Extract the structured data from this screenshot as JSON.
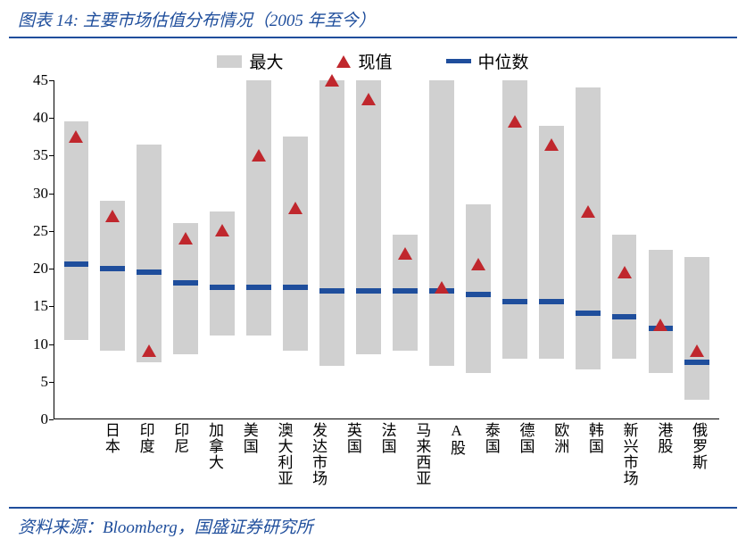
{
  "title": "图表 14:  主要市场估值分布情况（2005 年至今）",
  "source": "资料来源：Bloomberg，国盛证券研究所",
  "legend": {
    "max": "最大",
    "current": "现值",
    "median": "中位数"
  },
  "chart": {
    "type": "bar",
    "ylim": [
      0,
      45
    ],
    "ytick_step": 5,
    "yticks": [
      0,
      5,
      10,
      15,
      20,
      25,
      30,
      35,
      40,
      45
    ],
    "background_color": "#ffffff",
    "bar_color": "#d0d0d0",
    "marker_color": "#c0272d",
    "median_color": "#1f4e9c",
    "accent_color": "#1f4e9c",
    "axis_color": "#000000",
    "title_fontsize": 19,
    "label_fontsize": 17,
    "legend_fontsize": 19,
    "bar_width": 0.68,
    "marker_style": "triangle",
    "marker_size": 14,
    "median_line_height": 6,
    "categories": [
      "日本",
      "印度",
      "印尼",
      "加拿大",
      "美国",
      "澳大利亚",
      "发达市场",
      "英国",
      "法国",
      "马来西亚",
      "A股",
      "泰国",
      "德国",
      "欧洲",
      "韩国",
      "新兴市场",
      "港股",
      "俄罗斯"
    ],
    "range_low": [
      10.5,
      9,
      7.5,
      8.5,
      11,
      11,
      9,
      7,
      8.5,
      9,
      7,
      6,
      8,
      8,
      6.5,
      8,
      6,
      2.5
    ],
    "range_high": [
      39.5,
      29,
      36.5,
      26,
      27.5,
      45,
      37.5,
      45,
      45,
      24.5,
      45,
      28.5,
      45,
      39,
      44,
      24.5,
      22.5,
      21.5
    ],
    "current": [
      37.5,
      27,
      9,
      24,
      25,
      35,
      28,
      45,
      42.5,
      22,
      17.5,
      20.5,
      39.5,
      36.5,
      27.5,
      19.5,
      12.5,
      9
    ],
    "median": [
      20.5,
      20,
      19.5,
      18,
      17.5,
      17.5,
      17.5,
      17,
      17,
      17,
      17,
      16.5,
      15.5,
      15.5,
      14,
      13.5,
      12,
      7.5
    ]
  }
}
